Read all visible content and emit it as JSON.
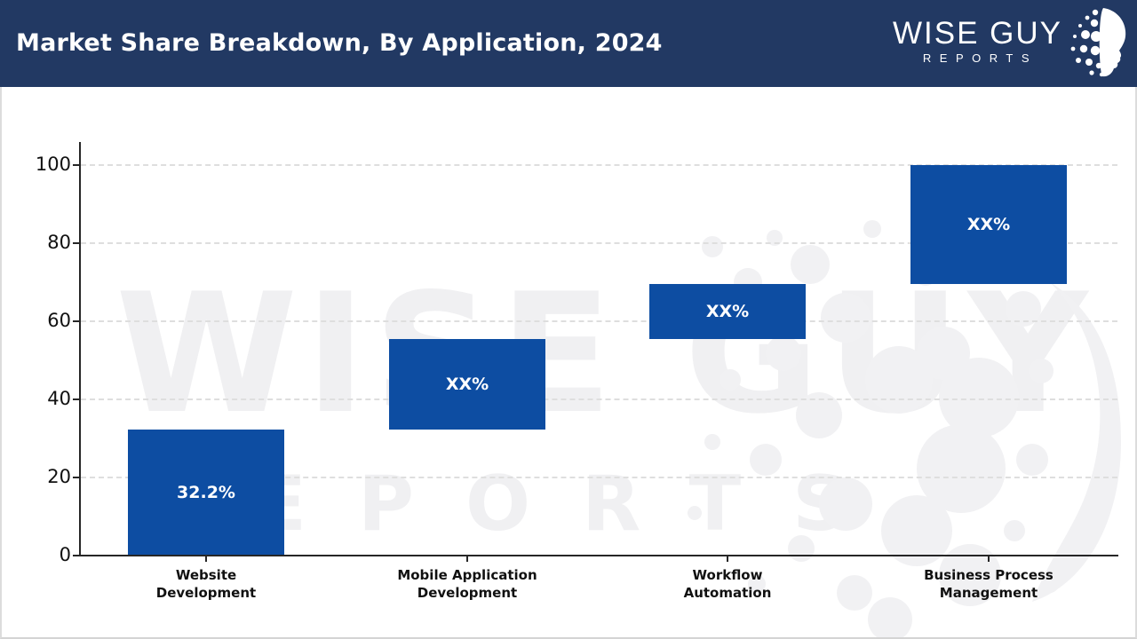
{
  "header": {
    "title": "Market Share Breakdown, By Application, 2024",
    "brand_name": "WISE GUY",
    "brand_sub": "REPORTS"
  },
  "watermark": {
    "line1": "WISE GUY",
    "line2": "REPORTS"
  },
  "colors": {
    "header_bg": "#223963",
    "bar": "#0d4da2",
    "bar_label": "#ffffff",
    "grid": "#dedede",
    "axis": "#262626",
    "watermark": "#f0f0f2"
  },
  "chart_data": {
    "type": "bar",
    "variant": "waterfall",
    "title": "Market Share Breakdown, By Application, 2024",
    "categories": [
      "Website\nDevelopment",
      "Mobile Application\nDevelopment",
      "Workflow\nAutomation",
      "Business Process\nManagement"
    ],
    "segments": [
      {
        "category": "Website Development",
        "start": 0,
        "end": 32.2,
        "label": "32.2%"
      },
      {
        "category": "Mobile Application Development",
        "start": 32.2,
        "end": 55.4,
        "label": "XX%"
      },
      {
        "category": "Workflow Automation",
        "start": 55.4,
        "end": 69.5,
        "label": "XX%"
      },
      {
        "category": "Business Process Management",
        "start": 69.5,
        "end": 100,
        "label": "XX%"
      }
    ],
    "yticks": [
      0,
      20,
      40,
      60,
      80,
      100
    ],
    "ylim": [
      0,
      105
    ],
    "xlabel": "",
    "ylabel": "",
    "legend": false,
    "grid": "horizontal-dashed"
  }
}
